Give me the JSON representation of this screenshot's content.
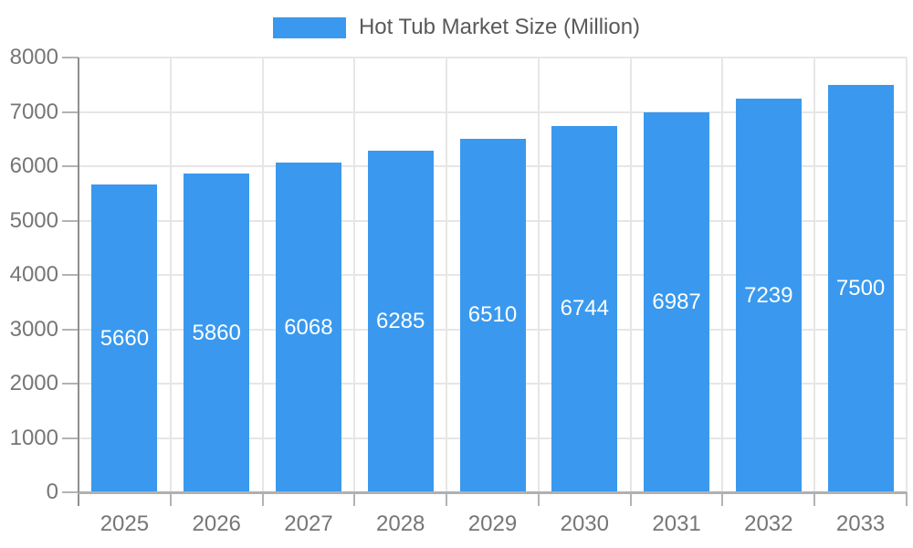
{
  "chart_data": {
    "type": "bar",
    "title": "Hot Tub Market Size (Million)",
    "categories": [
      "2025",
      "2026",
      "2027",
      "2028",
      "2029",
      "2030",
      "2031",
      "2032",
      "2033"
    ],
    "values": [
      5660,
      5860,
      6068,
      6285,
      6510,
      6744,
      6987,
      7239,
      7500
    ],
    "bar_labels": [
      5660,
      5860,
      6068,
      6285,
      6510,
      6744,
      6987,
      7239,
      7500
    ],
    "xlabel": "",
    "ylabel": "",
    "ylim": [
      0,
      8000
    ],
    "ytick_step": 1000,
    "ytick_labels": [
      "0",
      "1000",
      "2000",
      "3000",
      "4000",
      "5000",
      "6000",
      "7000",
      "8000"
    ],
    "grid": true,
    "legend_position": "top-center"
  },
  "legend": {
    "label": "Hot Tub Market Size (Million)"
  },
  "colors": {
    "bar": "#3a99ee",
    "grid": "#e6e6e6",
    "axis": "#8f8f8f",
    "baseline": "#b0b0b0",
    "tick": "#b3b3b3",
    "tick_label": "#767676",
    "legend_text": "#595959",
    "value_label": "#ffffff",
    "background": "#ffffff"
  }
}
